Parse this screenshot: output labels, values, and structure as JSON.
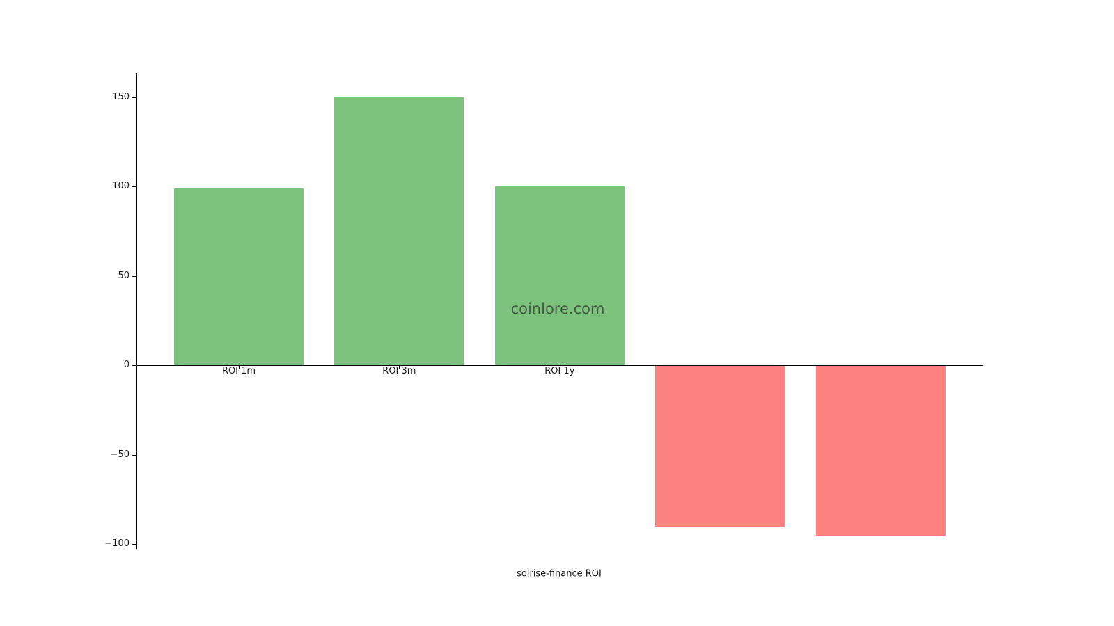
{
  "page": {
    "background": "#ffffff"
  },
  "chart_data": {
    "type": "bar",
    "title": "solrise-finance ROI",
    "xlabel": "solrise-finance ROI",
    "ylabel": "",
    "watermark": "coinlore.com",
    "categories": [
      "ROI 1m",
      "ROI 3m",
      "ROI 1y",
      "",
      ""
    ],
    "values": [
      99,
      150,
      100,
      -90,
      -95
    ],
    "bar_colors": [
      "#7dc37d",
      "#7dc37d",
      "#7dc37d",
      "#fc8282",
      "#fc8282"
    ],
    "positive_color": "#7dc37d",
    "negative_color": "#fc8282",
    "yticks": [
      150,
      100,
      50,
      0,
      -50,
      -100
    ],
    "ytick_labels": [
      "150",
      "100",
      "50",
      "0",
      "−50",
      "−100"
    ],
    "ylim": [
      -103,
      163
    ],
    "grid": false,
    "legend_position": "none"
  }
}
